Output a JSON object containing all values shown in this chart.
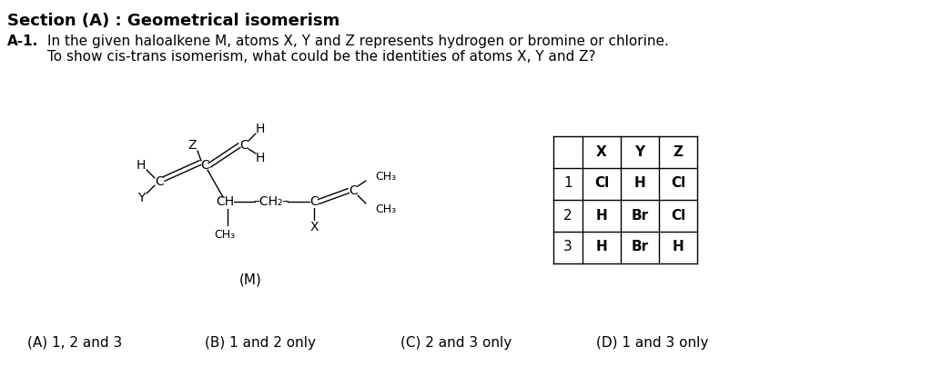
{
  "title": "Section (A) : Geometrical isomerism",
  "q_num": "A-1.",
  "q_line1": "In the given haloalkene M, atoms X, Y and Z represents hydrogen or bromine or chlorine.",
  "q_line2": "To show cis-trans isomerism, what could be the identities of atoms X, Y and Z?",
  "molecule_label": "(M)",
  "table_header": [
    "",
    "X",
    "Y",
    "Z"
  ],
  "table_rows": [
    [
      "1",
      "Cl",
      "H",
      "Cl"
    ],
    [
      "2",
      "H",
      "Br",
      "Cl"
    ],
    [
      "3",
      "H",
      "Br",
      "H"
    ]
  ],
  "choices": [
    "(A) 1, 2 and 3",
    "(B) 1 and 2 only",
    "(C) 2 and 3 only",
    "(D) 1 and 3 only"
  ],
  "bg_color": "#ffffff",
  "text_color": "#000000",
  "font_size_title": 13,
  "font_size_body": 11,
  "font_size_mol": 10
}
